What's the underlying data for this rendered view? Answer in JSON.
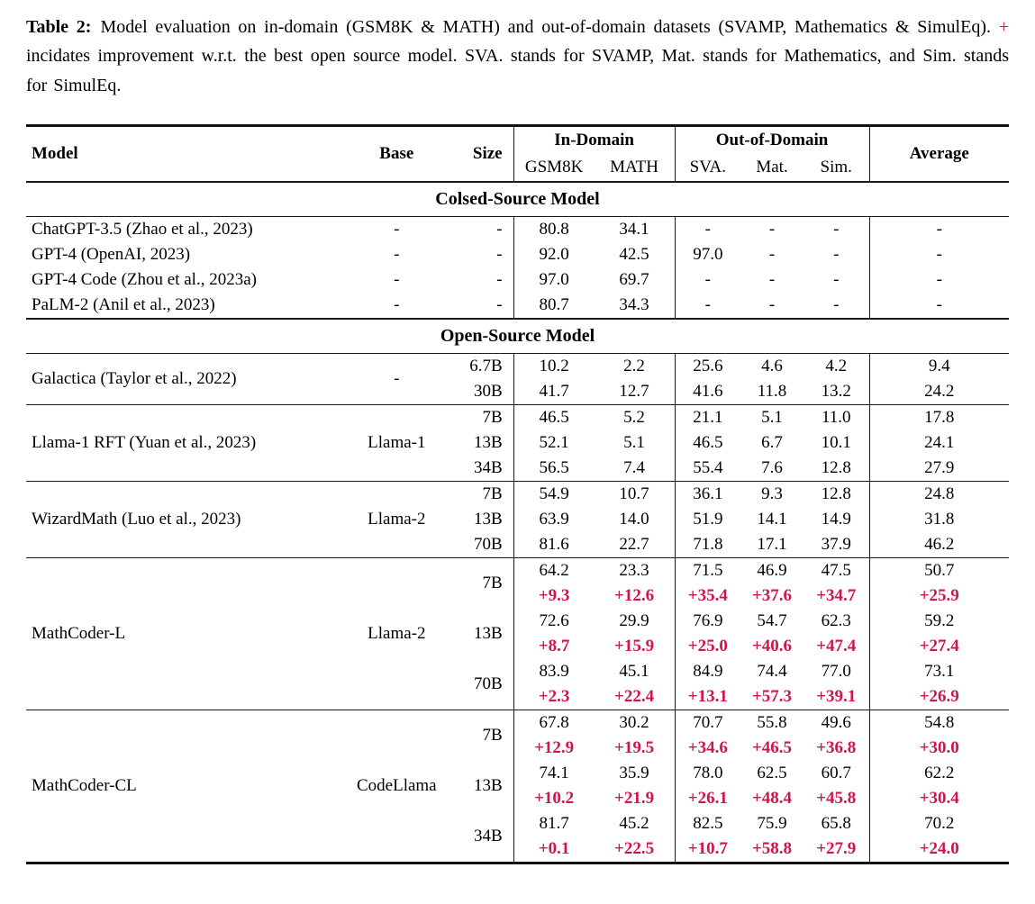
{
  "colors": {
    "accent_red": "#d01648",
    "rule": "#1a1a1a"
  },
  "caption": {
    "label": "Table 2:",
    "text_before_plus": "Model evaluation on in-domain (GSM8K & MATH) and out-of-domain datasets (SVAMP, Mathematics & SimulEq). ",
    "plus": "+",
    "text_after_plus": " incidates improvement w.r.t. the best open source model. SVA. stands for SVAMP, Mat. stands for Mathematics, and Sim. stands for SimulEq."
  },
  "header": {
    "model": "Model",
    "base": "Base",
    "size": "Size",
    "in_domain": "In-Domain",
    "out_of_domain": "Out-of-Domain",
    "average": "Average",
    "sub": [
      "GSM8K",
      "MATH",
      "SVA.",
      "Mat.",
      "Sim."
    ]
  },
  "body": [
    {
      "type": "section",
      "label": "Colsed-Source Model"
    },
    {
      "type": "group",
      "topline": false,
      "model": "ChatGPT-3.5 (Zhao et al., 2023)",
      "base": "-",
      "rows": [
        {
          "size": "-",
          "vals": [
            "80.8",
            "34.1",
            "-",
            "-",
            "-",
            "-"
          ]
        }
      ]
    },
    {
      "type": "group",
      "topline": false,
      "model": "GPT-4 (OpenAI, 2023)",
      "base": "-",
      "rows": [
        {
          "size": "-",
          "vals": [
            "92.0",
            "42.5",
            "97.0",
            "-",
            "-",
            "-"
          ]
        }
      ]
    },
    {
      "type": "group",
      "topline": false,
      "model": "GPT-4 Code (Zhou et al., 2023a)",
      "base": "-",
      "rows": [
        {
          "size": "-",
          "vals": [
            "97.0",
            "69.7",
            "-",
            "-",
            "-",
            "-"
          ]
        }
      ]
    },
    {
      "type": "group",
      "topline": false,
      "model": "PaLM-2 (Anil et al., 2023)",
      "base": "-",
      "rows": [
        {
          "size": "-",
          "vals": [
            "80.7",
            "34.3",
            "-",
            "-",
            "-",
            "-"
          ]
        }
      ]
    },
    {
      "type": "section",
      "label": "Open-Source Model"
    },
    {
      "type": "group",
      "topline": false,
      "model": "Galactica (Taylor et al., 2022)",
      "base": "-",
      "rows": [
        {
          "size": "6.7B",
          "vals": [
            "10.2",
            "2.2",
            "25.6",
            "4.6",
            "4.2",
            "9.4"
          ]
        },
        {
          "size": "30B",
          "vals": [
            "41.7",
            "12.7",
            "41.6",
            "11.8",
            "13.2",
            "24.2"
          ]
        }
      ]
    },
    {
      "type": "group",
      "topline": true,
      "model": "Llama-1 RFT (Yuan et al., 2023)",
      "base": "Llama-1",
      "rows": [
        {
          "size": "7B",
          "vals": [
            "46.5",
            "5.2",
            "21.1",
            "5.1",
            "11.0",
            "17.8"
          ]
        },
        {
          "size": "13B",
          "vals": [
            "52.1",
            "5.1",
            "46.5",
            "6.7",
            "10.1",
            "24.1"
          ]
        },
        {
          "size": "34B",
          "vals": [
            "56.5",
            "7.4",
            "55.4",
            "7.6",
            "12.8",
            "27.9"
          ]
        }
      ]
    },
    {
      "type": "group",
      "topline": true,
      "model": "WizardMath (Luo et al., 2023)",
      "base": "Llama-2",
      "rows": [
        {
          "size": "7B",
          "vals": [
            "54.9",
            "10.7",
            "36.1",
            "9.3",
            "12.8",
            "24.8"
          ]
        },
        {
          "size": "13B",
          "vals": [
            "63.9",
            "14.0",
            "51.9",
            "14.1",
            "14.9",
            "31.8"
          ]
        },
        {
          "size": "70B",
          "vals": [
            "81.6",
            "22.7",
            "71.8",
            "17.1",
            "37.9",
            "46.2"
          ]
        }
      ]
    },
    {
      "type": "group",
      "topline": true,
      "model": "MathCoder-L",
      "base": "Llama-2",
      "rows": [
        {
          "size": "7B",
          "vals": [
            "64.2",
            "23.3",
            "71.5",
            "46.9",
            "47.5",
            "50.7"
          ],
          "delta": [
            "+9.3",
            "+12.6",
            "+35.4",
            "+37.6",
            "+34.7",
            "+25.9"
          ]
        },
        {
          "size": "13B",
          "vals": [
            "72.6",
            "29.9",
            "76.9",
            "54.7",
            "62.3",
            "59.2"
          ],
          "delta": [
            "+8.7",
            "+15.9",
            "+25.0",
            "+40.6",
            "+47.4",
            "+27.4"
          ]
        },
        {
          "size": "70B",
          "vals": [
            "83.9",
            "45.1",
            "84.9",
            "74.4",
            "77.0",
            "73.1"
          ],
          "delta": [
            "+2.3",
            "+22.4",
            "+13.1",
            "+57.3",
            "+39.1",
            "+26.9"
          ]
        }
      ]
    },
    {
      "type": "group",
      "topline": true,
      "model": "MathCoder-CL",
      "base": "CodeLlama",
      "rows": [
        {
          "size": "7B",
          "vals": [
            "67.8",
            "30.2",
            "70.7",
            "55.8",
            "49.6",
            "54.8"
          ],
          "delta": [
            "+12.9",
            "+19.5",
            "+34.6",
            "+46.5",
            "+36.8",
            "+30.0"
          ]
        },
        {
          "size": "13B",
          "vals": [
            "74.1",
            "35.9",
            "78.0",
            "62.5",
            "60.7",
            "62.2"
          ],
          "delta": [
            "+10.2",
            "+21.9",
            "+26.1",
            "+48.4",
            "+45.8",
            "+30.4"
          ]
        },
        {
          "size": "34B",
          "vals": [
            "81.7",
            "45.2",
            "82.5",
            "75.9",
            "65.8",
            "70.2"
          ],
          "delta": [
            "+0.1",
            "+22.5",
            "+10.7",
            "+58.8",
            "+27.9",
            "+24.0"
          ]
        }
      ]
    }
  ]
}
